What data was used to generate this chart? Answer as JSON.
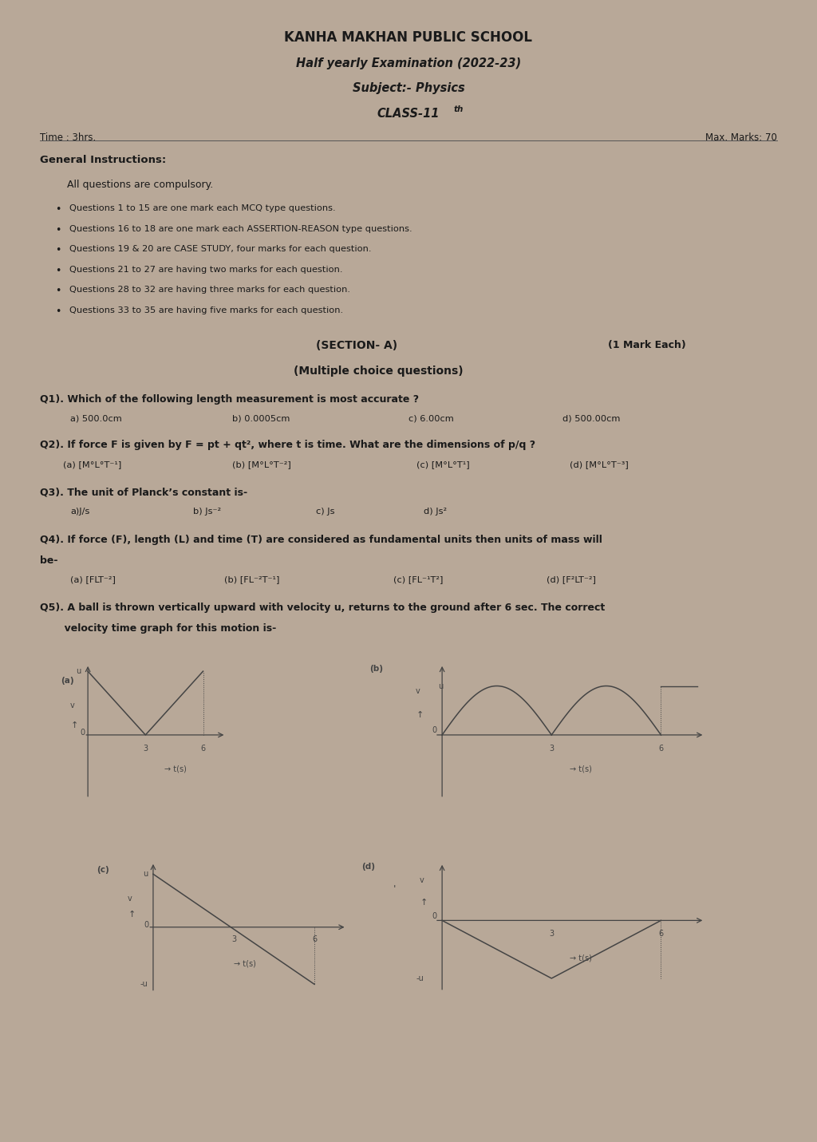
{
  "outer_bg": "#b8a898",
  "paper_bg": "#f0ebe0",
  "text_color": "#1a1a1a",
  "line_color": "#444444",
  "title1": "KANHA MAKHAN PUBLIC SCHOOL",
  "title2": "Half yearly Examination (2022-23)",
  "title3": "Subject:- Physics",
  "title4": "CLASS-11",
  "title4_sup": "th",
  "time_label": "Time : 3hrs.",
  "marks_label": "Max. Marks: 70",
  "instr_title": "General Instructions:",
  "all_compulsory": "All questions are compulsory.",
  "bullets": [
    "Questions 1 to 15 are one mark each MCQ type questions.",
    "Questions 16 to 18 are one mark each ASSERTION-REASON type questions.",
    "Questions 19 & 20 are CASE STUDY, four marks for each question.",
    "Questions 21 to 27 are having two marks for each question.",
    "Questions 28 to 32 are having three marks for each question.",
    "Questions 33 to 35 are having five marks for each question."
  ],
  "sec_a1": "(SECTION- A)",
  "sec_a2": "(Multiple choice questions)",
  "mark_each": "(1 Mark Each)",
  "q1_text": "Q1). Which of the following length measurement is most accurate ?",
  "q1_opts": [
    "a) 500.0cm",
    "b) 0.0005cm",
    "c) 6.00cm",
    "d) 500.00cm"
  ],
  "q2_text": "Q2). If force F is given by F = pt + qt², where t is time. What are the dimensions of p/q ?",
  "q2_opts": [
    "(a) [M°L°T⁻¹]",
    "(b) [M°L°T⁻²]",
    "(c) [M°L°T¹]",
    "(d) [M°L°T⁻³]"
  ],
  "q3_text": "Q3). The unit of Planck’s constant is-",
  "q3_opts": [
    "a)J/s",
    "b) Js⁻²",
    "c) Js",
    "d) Js²"
  ],
  "q4_text1": "Q4). If force (F), length (L) and time (T) are considered as fundamental units then units of mass will",
  "q4_text2": "be-",
  "q4_opts": [
    "(a) [FLT⁻²]",
    "(b) [FL⁻²T⁻¹]",
    "(c) [FL⁻¹T²]",
    "(d) [F²LT⁻²]"
  ],
  "q5_text1": "Q5). A ball is thrown vertically upward with velocity u, returns to the ground after 6 sec. The correct",
  "q5_text2": "       velocity time graph for this motion is-"
}
